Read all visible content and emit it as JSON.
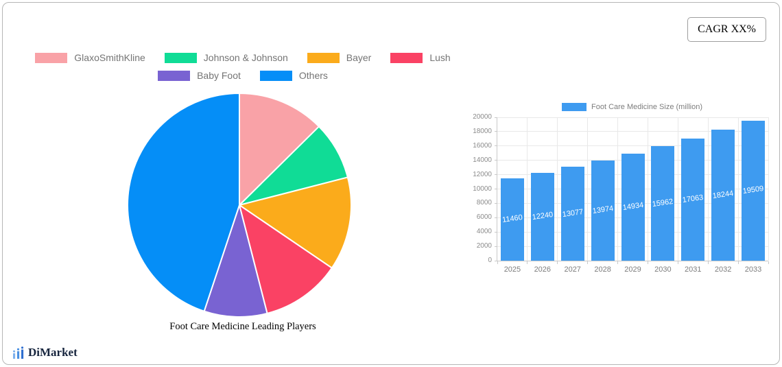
{
  "header": {
    "cagr_label": "CAGR XX%"
  },
  "brand": {
    "name": "DiMarket",
    "accent_color": "#3b82d8",
    "text_color": "#16243d"
  },
  "chart_data": [
    {
      "type": "pie",
      "title": "Foot Care Medicine Leading Players",
      "legend_position": "top",
      "unit": "percent share (estimated from pixels)",
      "start_angle_deg": 0,
      "direction": "clockwise",
      "slices": [
        {
          "label": "GlaxoSmithKline",
          "value": 12.6,
          "color": "#f9a2a7"
        },
        {
          "label": "Johnson & Johnson",
          "value": 8.4,
          "color": "#10dc96"
        },
        {
          "label": "Bayer",
          "value": 13.5,
          "color": "#fbab1b"
        },
        {
          "label": "Lush",
          "value": 11.5,
          "color": "#fa4264"
        },
        {
          "label": "Baby Foot",
          "value": 9.1,
          "color": "#7963d2"
        },
        {
          "label": "Others",
          "value": 44.9,
          "color": "#058ef7"
        }
      ]
    },
    {
      "type": "bar",
      "categories": [
        "2025",
        "2026",
        "2027",
        "2028",
        "2029",
        "2030",
        "2031",
        "2032",
        "2033"
      ],
      "series": [
        {
          "name": "Foot Care Medicine Size (million)",
          "values": [
            11460,
            12240,
            13077,
            13974,
            14934,
            15962,
            17063,
            18244,
            19509
          ]
        }
      ],
      "ylim": [
        0,
        20000
      ],
      "ytick_step": 2000,
      "bar_color": "#3e9bf0",
      "grid": true,
      "legend_position": "top",
      "value_labels": "inside, white, slightly rotated"
    }
  ]
}
